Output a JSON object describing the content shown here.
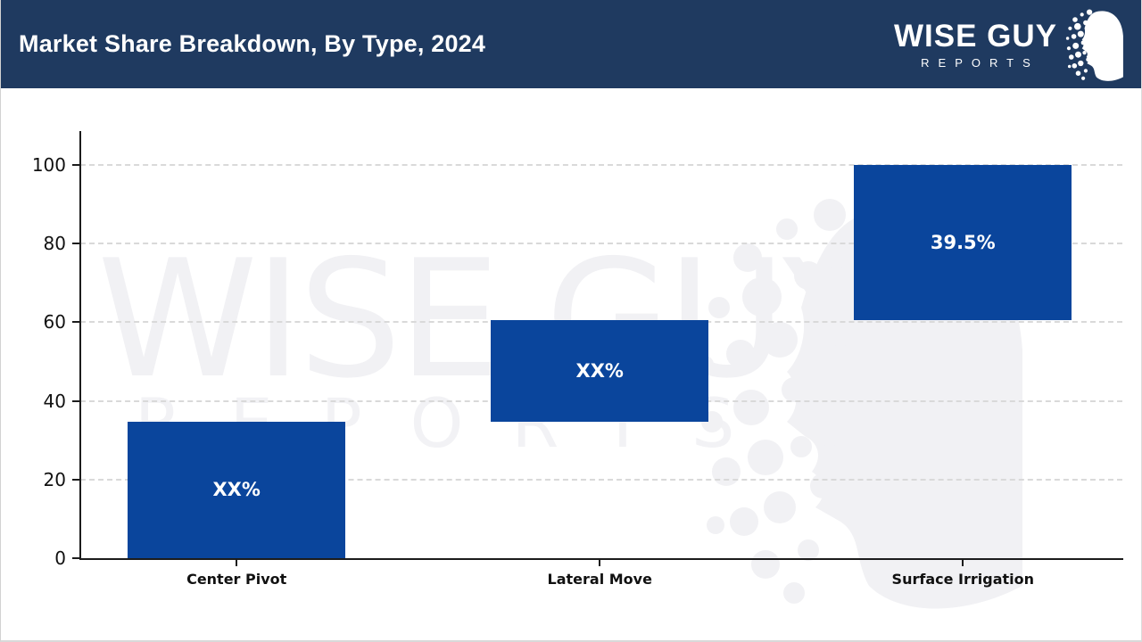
{
  "header": {
    "title": "Market Share Breakdown, By Type, 2024",
    "logo": {
      "line1": "WISE GUY",
      "line2": "REPORTS"
    }
  },
  "watermark": {
    "line1": "WISE GUY",
    "line2": "REPORTS"
  },
  "chart_data": {
    "type": "bar",
    "subtype": "floating-waterfall",
    "title": "Market Share Breakdown, By Type, 2024",
    "categories": [
      "Center Pivot",
      "Lateral Move",
      "Surface Irrigation"
    ],
    "segments": [
      {
        "category": "Center Pivot",
        "start": 0,
        "end": 34.7,
        "value_label": "XX%"
      },
      {
        "category": "Lateral Move",
        "start": 34.7,
        "end": 60.5,
        "value_label": "XX%"
      },
      {
        "category": "Surface Irrigation",
        "start": 60.5,
        "end": 100,
        "value_label": "39.5%"
      }
    ],
    "xlabel": "",
    "ylabel": "",
    "ylim": [
      0,
      100
    ],
    "yticks": [
      0,
      20,
      40,
      60,
      80,
      100
    ],
    "grid": "horizontal-dashed",
    "legend": "none",
    "bar_color": "#0a459c",
    "bar_label_color": "#ffffff",
    "axis_color": "#1c1c1c",
    "grid_color": "#d9d9d9"
  },
  "colors": {
    "header_bg": "#1f3a60",
    "header_text": "#ffffff",
    "bar": "#0a459c",
    "watermark": "#f1f1f4"
  }
}
